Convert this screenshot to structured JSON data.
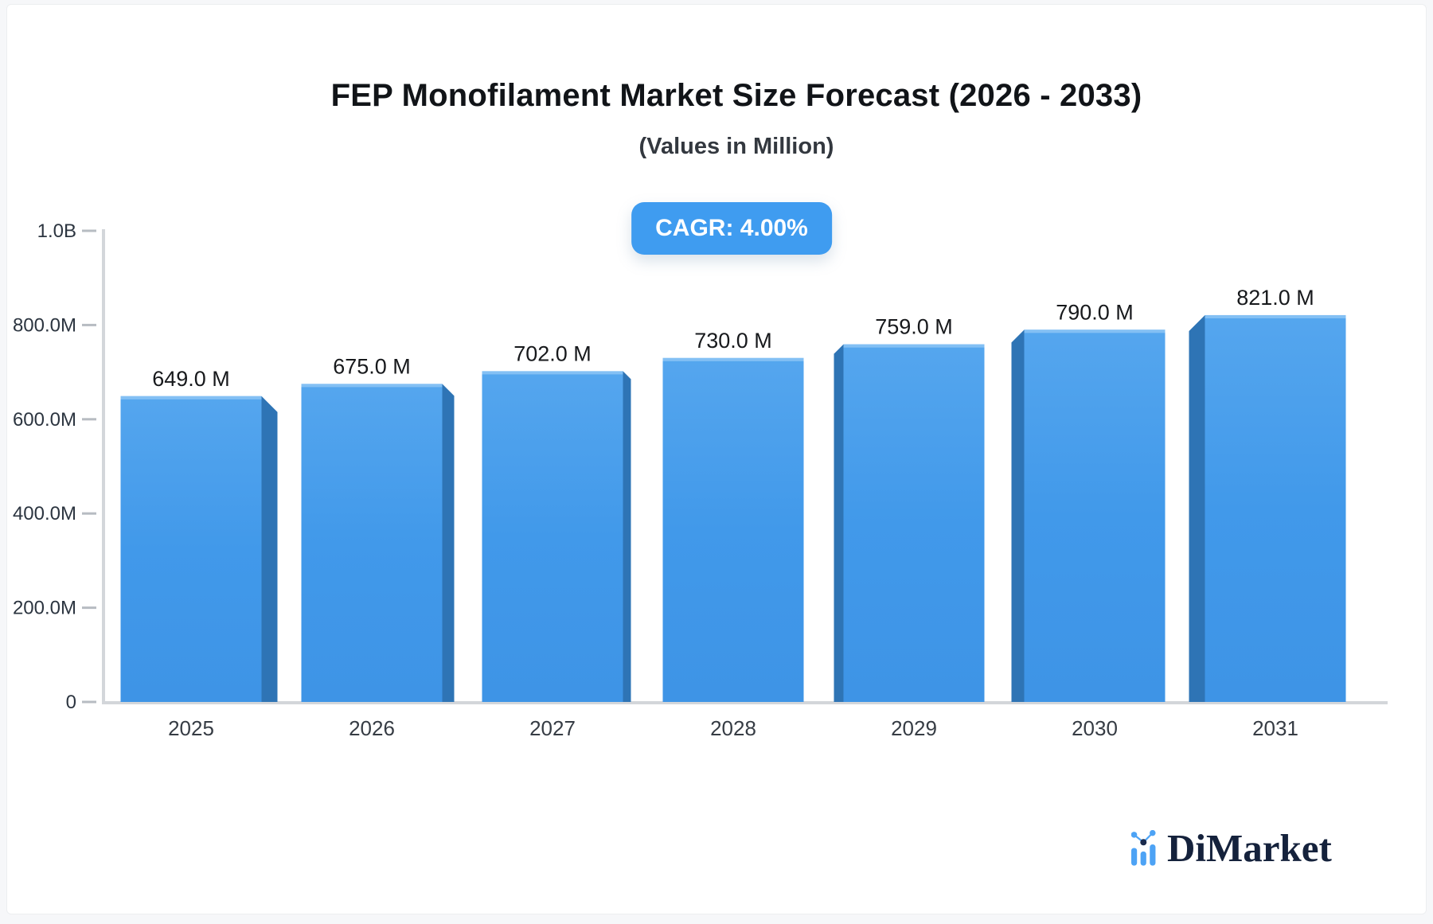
{
  "header": {
    "title": "FEP Monofilament Market Size Forecast (2026 - 2033)",
    "subtitle": "(Values in Million)",
    "cagr_badge": "CAGR: 4.00%"
  },
  "chart_data": {
    "type": "bar",
    "categories": [
      "2025",
      "2026",
      "2027",
      "2028",
      "2029",
      "2030",
      "2031"
    ],
    "values": [
      649.0,
      675.0,
      702.0,
      730.0,
      759.0,
      790.0,
      821.0
    ],
    "value_labels": [
      "649.0 M",
      "675.0 M",
      "702.0 M",
      "730.0 M",
      "759.0 M",
      "790.0 M",
      "821.0 M"
    ],
    "value_unit": "Million",
    "y_ticks": [
      "1.0B",
      "800.0M",
      "600.0M",
      "400.0M",
      "200.0M",
      "0"
    ],
    "y_tick_values": [
      1000,
      800,
      600,
      400,
      200,
      0
    ],
    "ylim": [
      0,
      1000
    ],
    "grid": false,
    "legend": false,
    "title": "FEP Monofilament Market Size Forecast (2026 - 2033)",
    "subtitle": "(Values in Million)",
    "annotation": "CAGR: 4.00%",
    "style": "3d-perspective-bars"
  },
  "colors": {
    "accent": "#3f9cf0",
    "bar_front_top": "#55a6ee",
    "bar_front_mid": "#4199ea",
    "bar_front_bottom": "#3e94e6",
    "bar_highlight": "#83c0f4",
    "bar_side": "#2e74b5",
    "axis_line": "#d3d6da",
    "tick_mark": "#b7bcc2",
    "value_text": "#17191c",
    "axis_text": "#2c3540",
    "year_text": "#363c44",
    "logo_navy": "#15223c",
    "logo_blue": "#4da3f5"
  },
  "footer": {
    "brand": "DiMarket"
  }
}
